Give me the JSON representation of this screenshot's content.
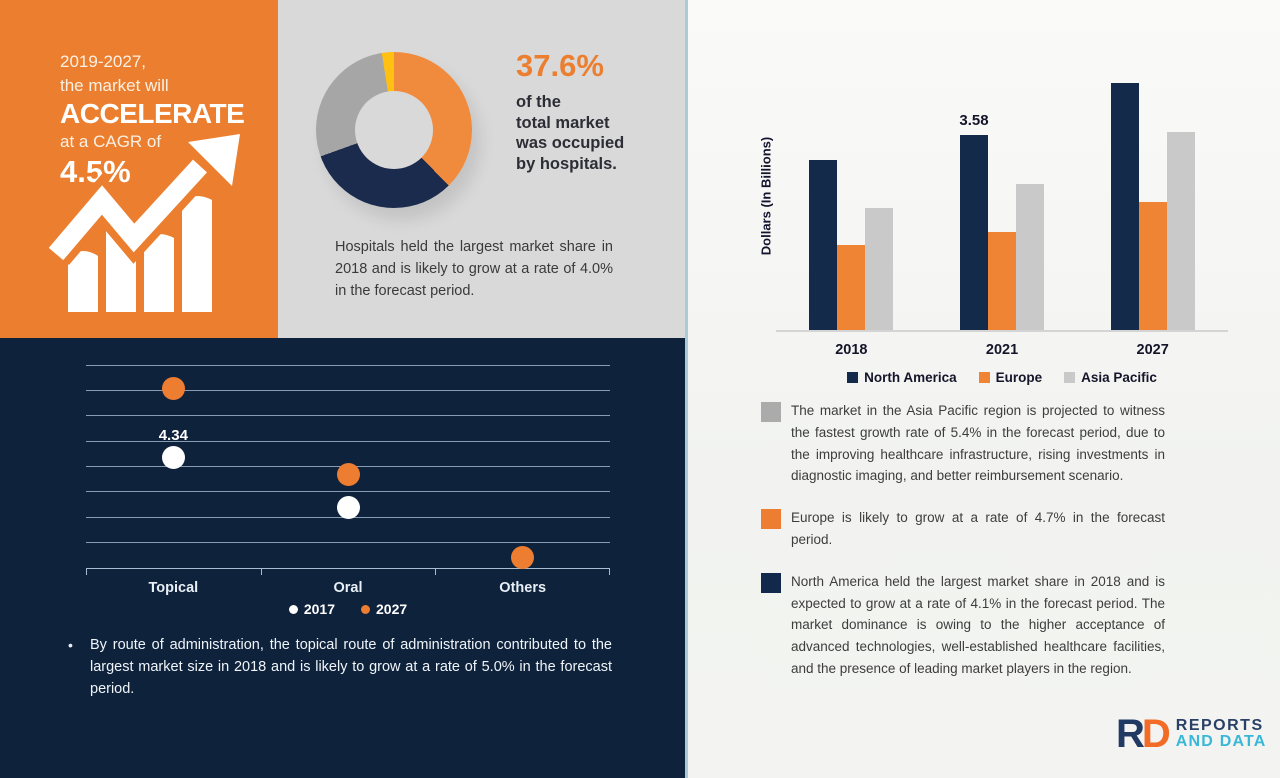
{
  "palette": {
    "orange": "#EB7F2F",
    "navy_panel": "#0F223C",
    "gray_panel": "#D9D9D9",
    "right_panel_bg": "#F3F4F1",
    "right_panel_border": "#A9CBD7",
    "donut_yellow": "#FFC011",
    "white": "#FFFFFF"
  },
  "promo_panel": {
    "period": "2019-2027,",
    "line2": "the market will",
    "emphasis": "ACCELERATE",
    "line4": "at a CAGR of",
    "cagr": "4.5%"
  },
  "hospital_panel": {
    "stat": "37.6%",
    "stat_caption": "of the\ntotal market\nwas occupied\nby hospitals.",
    "note": "Hospitals held the largest market share in 2018 and is likely to grow at a rate of 4.0% in the forecast period."
  },
  "route_panel": {
    "bullet": "•",
    "note": "By route of administration, the topical route of administration contributed to the largest market size in 2018 and is likely to grow at a rate of 5.0% in the forecast period."
  },
  "regional_notes": [
    {
      "color": "#ABABAB",
      "text": "The market in the Asia Pacific region is projected to witness the fastest growth rate of 5.4% in the forecast period, due to the improving healthcare infrastructure, rising investments in diagnostic imaging, and better reimbursement scenario."
    },
    {
      "color": "#ED7D31",
      "text": "Europe is likely to grow at a rate of 4.7% in the forecast period."
    },
    {
      "color": "#13294B",
      "text": "North America held the largest market share in 2018 and is expected to grow at a rate of 4.1% in the forecast period. The market dominance is owing to the higher acceptance of advanced technologies, well-established healthcare facilities, and the presence of leading market players in the region."
    }
  ],
  "logo": {
    "mark_r": "R",
    "mark_d": "D",
    "name_top": "REPORTS",
    "name_bottom": "AND DATA"
  },
  "chart_data": [
    {
      "type": "pie",
      "donut": true,
      "labels": [
        "Hospitals",
        "",
        "",
        ""
      ],
      "values": [
        37.6,
        31.9,
        28.0,
        2.5
      ],
      "colors": [
        "#F08A3C",
        "#1B2B4D",
        "#A6A6A6",
        "#FFC011"
      ],
      "annotation": "37.6% of the total market was occupied by hospitals."
    },
    {
      "type": "scatter",
      "categories": [
        "Topical",
        "Oral",
        "Others"
      ],
      "series": [
        {
          "name": "2017",
          "color": "#FFFFFF",
          "values": [
            4.34,
            2.4,
            null
          ]
        },
        {
          "name": "2027",
          "color": "#ED7D31",
          "values": [
            7.07,
            3.69,
            0.4
          ]
        }
      ],
      "data_labels": [
        {
          "series": "2017",
          "category": "Topical",
          "text": "4.34"
        }
      ],
      "ylim": [
        0,
        8
      ],
      "gridlines": [
        1,
        2,
        3,
        4,
        5,
        6,
        7,
        8
      ],
      "legend_position": "bottom"
    },
    {
      "type": "bar",
      "categories": [
        "2018",
        "2021",
        "2027"
      ],
      "series": [
        {
          "name": "North America",
          "color": "#142A4B",
          "values": [
            3.13,
            3.58,
            4.54
          ]
        },
        {
          "name": "Europe",
          "color": "#EE8434",
          "values": [
            1.56,
            1.81,
            2.36
          ]
        },
        {
          "name": "Asia Pacific",
          "color": "#C9C9C9",
          "values": [
            2.25,
            2.68,
            3.64
          ]
        }
      ],
      "ylabel": "Dollars (In Billions)",
      "ylim": [
        0,
        5
      ],
      "data_labels": [
        {
          "series": "North America",
          "category": "2021",
          "text": "3.58"
        }
      ],
      "legend_position": "bottom"
    }
  ]
}
